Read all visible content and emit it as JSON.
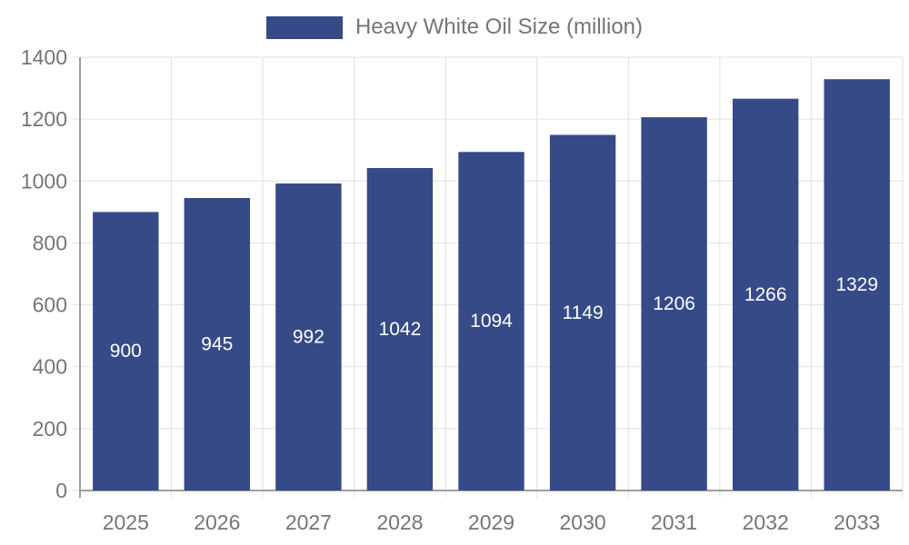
{
  "chart_data": {
    "type": "bar",
    "title": "Heavy White Oil Size (million)",
    "categories": [
      "2025",
      "2026",
      "2027",
      "2028",
      "2029",
      "2030",
      "2031",
      "2032",
      "2033"
    ],
    "values": [
      900,
      945,
      992,
      1042,
      1094,
      1149,
      1206,
      1266,
      1329
    ],
    "xlabel": "",
    "ylabel": "",
    "ylim": [
      0,
      1400
    ],
    "yticks": [
      0,
      200,
      400,
      600,
      800,
      1000,
      1200,
      1400
    ],
    "grid": true,
    "legend_position": "top-center",
    "legend": {
      "label": "Heavy White Oil Size (million)",
      "swatch_color": "#364a88"
    },
    "colors": {
      "bar": "#364a88",
      "bar_value_label": "#ffffff",
      "axis_text": "#757575",
      "grid_line": "#e0e0e0",
      "axis_line": "#9e9e9e"
    }
  }
}
